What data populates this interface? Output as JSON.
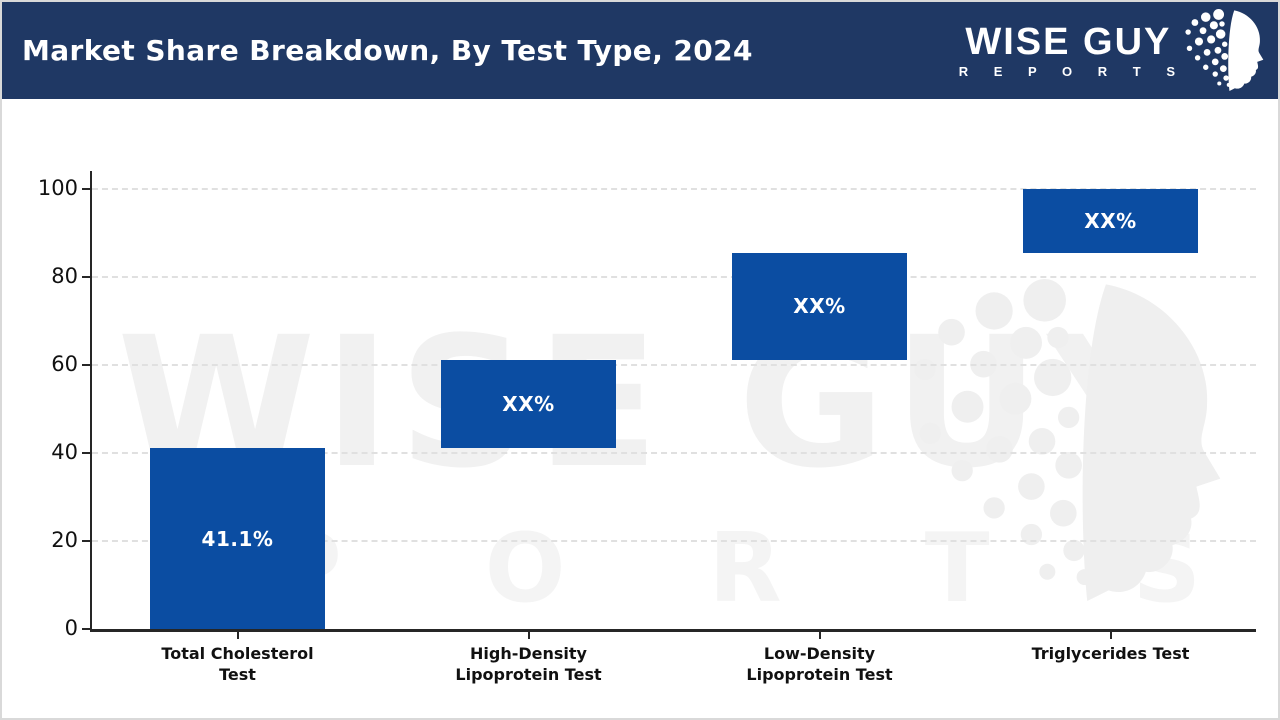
{
  "header": {
    "title": "Market Share Breakdown, By Test Type, 2024",
    "logo": {
      "line1": "WISE GUY",
      "line2": "R E P O R T S",
      "head_icon": "dotted-head-profile-icon"
    }
  },
  "watermark": {
    "line1": "WISE GUY",
    "line2": "P O R T S",
    "head_icon": "dotted-head-profile-watermark"
  },
  "chart_data": {
    "type": "bar",
    "subtype": "waterfall",
    "title": "Market Share Breakdown, By Test Type, 2024",
    "categories": [
      "Total Cholesterol\nTest",
      "High-Density\nLipoprotein Test",
      "Low-Density\nLipoprotein Test",
      "Triglycerides Test"
    ],
    "bars": [
      {
        "label": "41.1%",
        "start": 0,
        "end": 41.1
      },
      {
        "label": "XX%",
        "start": 41.1,
        "end": 61.2
      },
      {
        "label": "XX%",
        "start": 61.2,
        "end": 85.5
      },
      {
        "label": "XX%",
        "start": 85.5,
        "end": 100
      }
    ],
    "xlabel": "",
    "ylabel": "",
    "ylim": [
      0,
      100
    ],
    "yticks": [
      0,
      20,
      40,
      60,
      80,
      100
    ],
    "grid": "horizontal-dashed",
    "legend": "none"
  },
  "colors": {
    "header_bg": "#1f3864",
    "bar": "#0b4da2",
    "bar_label": "#ffffff",
    "axis": "#262626",
    "grid": "#e0e0e0",
    "watermark": "#f1f1f1",
    "frame_border": "#d9d9d9"
  }
}
